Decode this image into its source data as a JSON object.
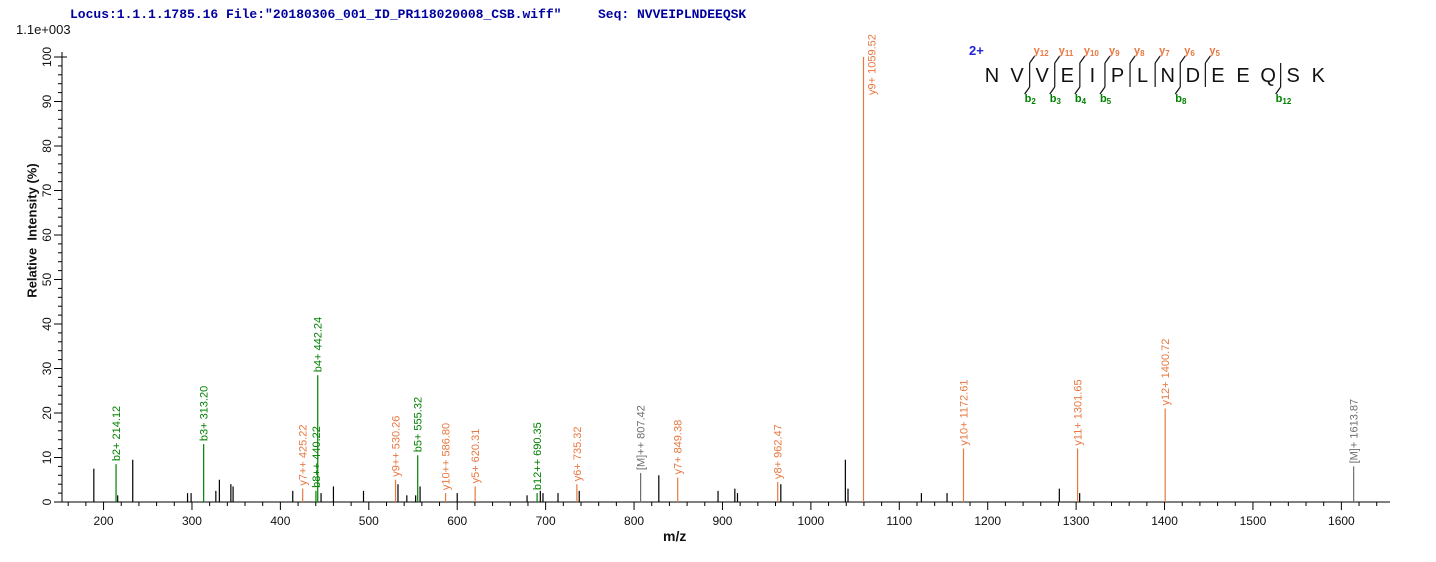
{
  "header": {
    "locus_file": "Locus:1.1.1.1785.16 File:\"20180306_001_ID_PR118020008_CSB.wiff\"",
    "seq": "Seq: NVVEIPLNDEEQSK",
    "max_intensity": "1.1e+003"
  },
  "chart_data": {
    "type": "bar",
    "subtype": "ms2-spectrum",
    "xlabel": "m/z",
    "ylabel": "Relative  Intensity (%)",
    "xlim": [
      153,
      1655
    ],
    "ylim": [
      0,
      100
    ],
    "x_major_step": 100,
    "x_minor_step": 20,
    "y_major_step": 10,
    "y_minor_step": 2,
    "grid": "off",
    "colors": {
      "b": "#008000",
      "y": "#E87840",
      "M": "#6E6E6E",
      "peak_default": "#000000"
    },
    "labeled_peaks": [
      {
        "ion": "b2+",
        "mz": 214.12,
        "intensity": 8.5,
        "type": "b",
        "text": "b2+ 214.12"
      },
      {
        "ion": "b3+",
        "mz": 313.2,
        "intensity": 13,
        "type": "b",
        "text": "b3+ 313.20"
      },
      {
        "ion": "y7++",
        "mz": 425.22,
        "intensity": 3,
        "type": "y",
        "text": "y7++ 425.22"
      },
      {
        "ion": "b8++",
        "mz": 440.22,
        "intensity": 2.5,
        "type": "b",
        "text": "b8++ 440.22"
      },
      {
        "ion": "b4+",
        "mz": 442.24,
        "intensity": 28.5,
        "type": "b",
        "text": "b4+ 442.24"
      },
      {
        "ion": "y9++",
        "mz": 530.26,
        "intensity": 5,
        "type": "y",
        "text": "y9++ 530.26"
      },
      {
        "ion": "b5+",
        "mz": 555.32,
        "intensity": 10.5,
        "type": "b",
        "text": "b5+ 555.32"
      },
      {
        "ion": "y10++",
        "mz": 586.8,
        "intensity": 2,
        "type": "y",
        "text": "y10++ 586.80"
      },
      {
        "ion": "y5+",
        "mz": 620.31,
        "intensity": 3.5,
        "type": "y",
        "text": "y5+ 620.31"
      },
      {
        "ion": "b12++",
        "mz": 690.35,
        "intensity": 2,
        "type": "b",
        "text": "b12++ 690.35"
      },
      {
        "ion": "y6+",
        "mz": 735.32,
        "intensity": 4,
        "type": "y",
        "text": "y6+ 735.32"
      },
      {
        "ion": "[M]++",
        "mz": 807.42,
        "intensity": 6.5,
        "type": "M",
        "text": "[M]++ 807.42"
      },
      {
        "ion": "y7+",
        "mz": 849.38,
        "intensity": 5.5,
        "type": "y",
        "text": "y7+ 849.38"
      },
      {
        "ion": "y8+",
        "mz": 962.47,
        "intensity": 4.5,
        "type": "y",
        "text": "y8+ 962.47"
      },
      {
        "ion": "y9+",
        "mz": 1059.52,
        "intensity": 100,
        "type": "y",
        "text": "y9+ 1059.52"
      },
      {
        "ion": "y10+",
        "mz": 1172.61,
        "intensity": 12,
        "type": "y",
        "text": "y10+ 1172.61"
      },
      {
        "ion": "y11+",
        "mz": 1301.65,
        "intensity": 12,
        "type": "y",
        "text": "y11+ 1301.65"
      },
      {
        "ion": "y12+",
        "mz": 1400.72,
        "intensity": 21,
        "type": "y",
        "text": "y12+ 1400.72"
      },
      {
        "ion": "[M]+",
        "mz": 1613.87,
        "intensity": 8,
        "type": "M",
        "text": "[M]+ 1613.87"
      }
    ],
    "peaks": [
      [
        189,
        7.5
      ],
      [
        216,
        1.5
      ],
      [
        233,
        9.5
      ],
      [
        295,
        2
      ],
      [
        299,
        2
      ],
      [
        327,
        2.5
      ],
      [
        331,
        5
      ],
      [
        344,
        4
      ],
      [
        346.5,
        3.5
      ],
      [
        414,
        2.5
      ],
      [
        446,
        2
      ],
      [
        460,
        3.5
      ],
      [
        494,
        2.5
      ],
      [
        533,
        4
      ],
      [
        543,
        1.5
      ],
      [
        553,
        1.5
      ],
      [
        558,
        3.5
      ],
      [
        600,
        2
      ],
      [
        679,
        1.5
      ],
      [
        694,
        2.5
      ],
      [
        697,
        2
      ],
      [
        714,
        2
      ],
      [
        738,
        2.5
      ],
      [
        828,
        6
      ],
      [
        895,
        2.5
      ],
      [
        914,
        3
      ],
      [
        917,
        2
      ],
      [
        966,
        4
      ],
      [
        1039,
        9.5
      ],
      [
        1042,
        3
      ],
      [
        1125,
        2
      ],
      [
        1154,
        2
      ],
      [
        1281,
        3
      ],
      [
        1304,
        2
      ]
    ]
  },
  "annotation": {
    "charge": "2+",
    "residues": [
      "N",
      "V",
      "V",
      "E",
      "I",
      "P",
      "L",
      "N",
      "D",
      "E",
      "E",
      "Q",
      "S",
      "K"
    ],
    "y_ions": [
      {
        "num": "12",
        "gap": 2
      },
      {
        "num": "11",
        "gap": 3
      },
      {
        "num": "10",
        "gap": 4
      },
      {
        "num": "9",
        "gap": 5
      },
      {
        "num": "8",
        "gap": 6
      },
      {
        "num": "7",
        "gap": 7
      },
      {
        "num": "6",
        "gap": 8
      },
      {
        "num": "5",
        "gap": 9
      }
    ],
    "b_ions": [
      {
        "num": "2",
        "gap": 2
      },
      {
        "num": "3",
        "gap": 3
      },
      {
        "num": "4",
        "gap": 4
      },
      {
        "num": "5",
        "gap": 5
      },
      {
        "num": "8",
        "gap": 8
      },
      {
        "num": "12",
        "gap": 12
      }
    ]
  }
}
